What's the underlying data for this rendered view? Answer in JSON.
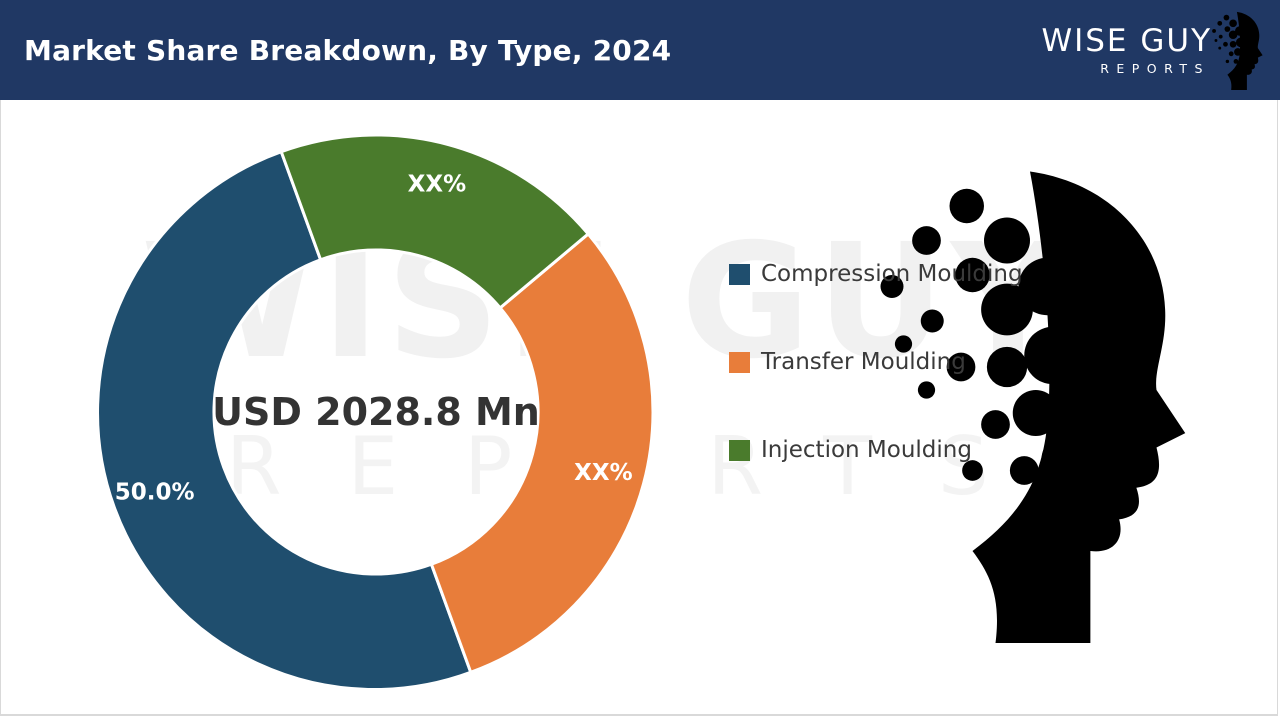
{
  "header": {
    "title": "Market Share Breakdown, By Type, 2024",
    "bg_color": "#203864",
    "logo": {
      "line1": "WISE GUY",
      "line2": "REPORTS"
    }
  },
  "watermark": {
    "line1": "WISE GUY",
    "line2": "REPORTS"
  },
  "chart_data": {
    "type": "pie",
    "subtype": "donut",
    "title": "Market Share Breakdown, By Type, 2024",
    "center_label": "USD 2028.8 Mn",
    "inner_radius_ratio": 0.585,
    "legend_position": "right",
    "segments": [
      {
        "name": "Compression Moulding",
        "label": "50.0%",
        "value_pct": 50.0,
        "color": "#1f4e6e",
        "start_angle_deg": 110,
        "end_angle_deg": 290
      },
      {
        "name": "Transfer Moulding",
        "label": "XX%",
        "value_pct": 30.6,
        "color": "#e87d3a",
        "start_angle_deg": 290,
        "end_angle_deg": 400
      },
      {
        "name": "Injection Moulding",
        "label": "XX%",
        "value_pct": 19.4,
        "color": "#4a7b2c",
        "start_angle_deg": 40,
        "end_angle_deg": 110
      }
    ],
    "slice_label_color": "#ffffff",
    "center_label_color": "#333333"
  }
}
